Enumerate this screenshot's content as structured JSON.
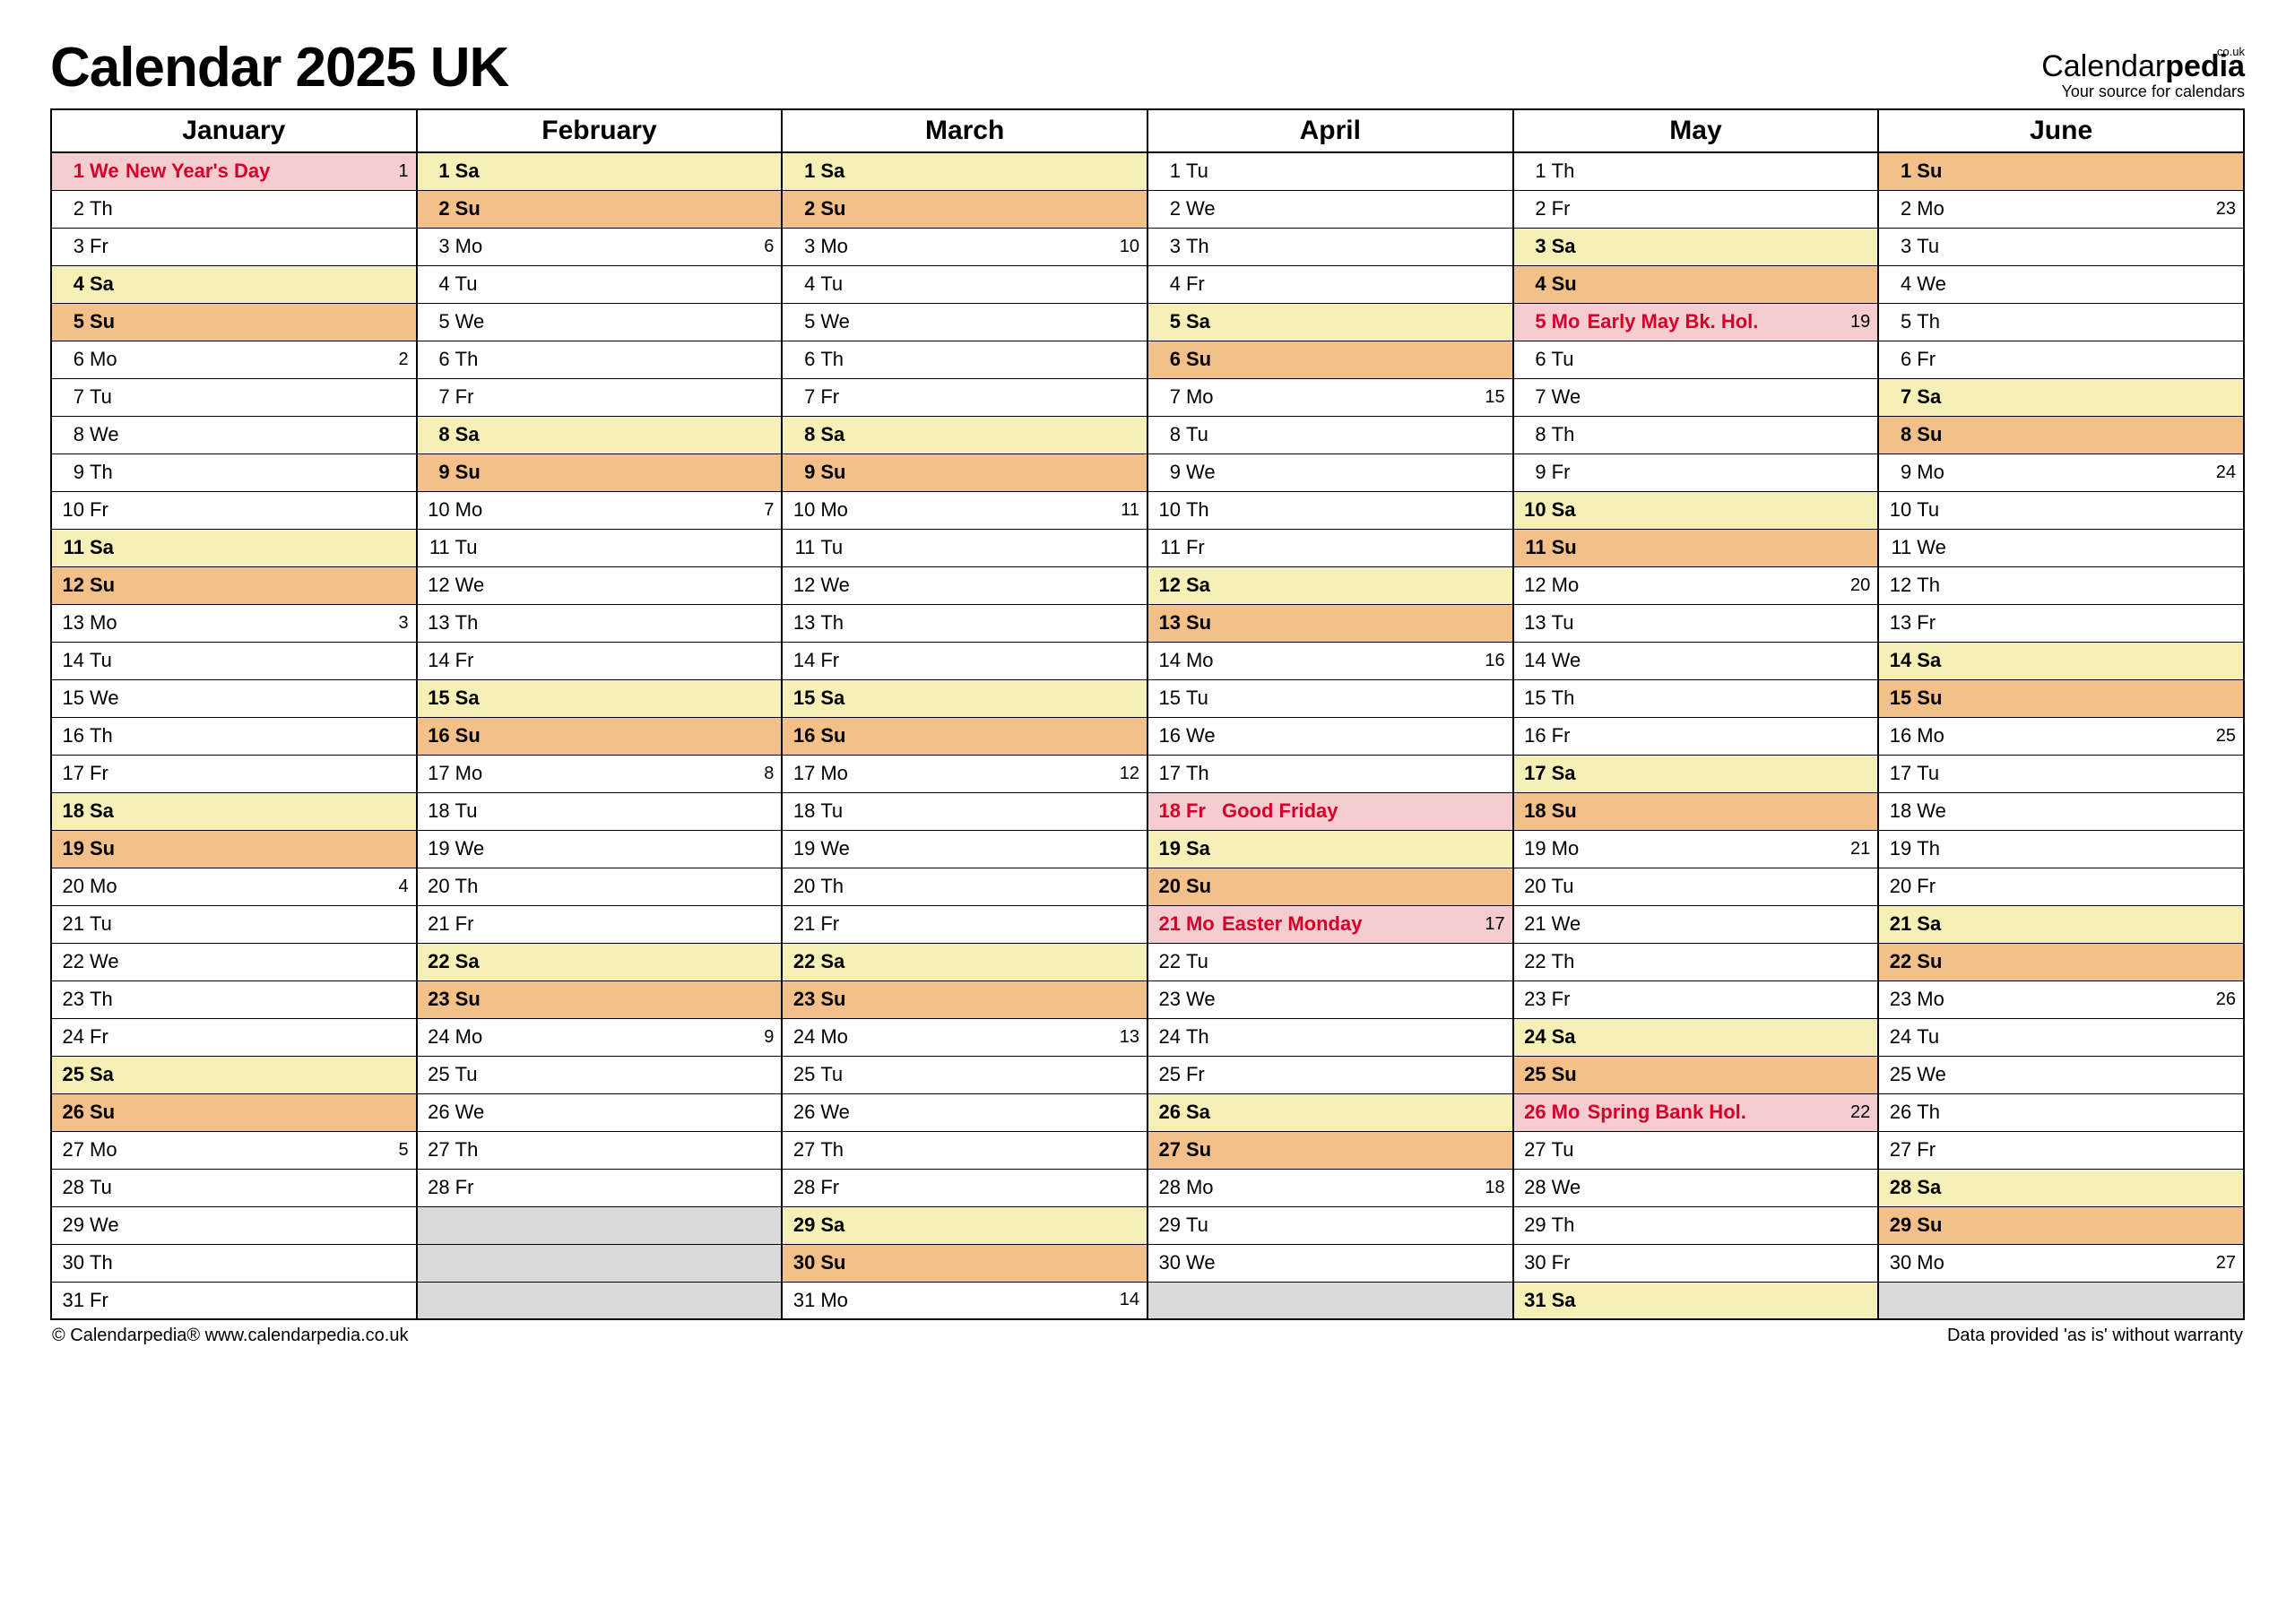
{
  "title": "Calendar 2025 UK",
  "logo": {
    "brand_a": "Calendar",
    "brand_b": "pedia",
    "tld": ".co.uk",
    "tagline": "Your source for calendars"
  },
  "footer_left": "© Calendarpedia®    www.calendarpedia.co.uk",
  "footer_right": "Data provided 'as is' without warranty",
  "colors": {
    "sat": "#f6f0b6",
    "sun": "#f2c088",
    "hol": "#f5cdd0",
    "empty": "#d9d9d9",
    "hol_text": "#d4002a",
    "bold_text": "#000000"
  },
  "row_count": 31,
  "months": [
    {
      "name": "January",
      "days": [
        {
          "n": 1,
          "d": "We",
          "hol": "New Year's Day",
          "wk": 1,
          "t": "hol"
        },
        {
          "n": 2,
          "d": "Th"
        },
        {
          "n": 3,
          "d": "Fr"
        },
        {
          "n": 4,
          "d": "Sa",
          "t": "sat"
        },
        {
          "n": 5,
          "d": "Su",
          "t": "sun"
        },
        {
          "n": 6,
          "d": "Mo",
          "wk": 2
        },
        {
          "n": 7,
          "d": "Tu"
        },
        {
          "n": 8,
          "d": "We"
        },
        {
          "n": 9,
          "d": "Th"
        },
        {
          "n": 10,
          "d": "Fr"
        },
        {
          "n": 11,
          "d": "Sa",
          "t": "sat"
        },
        {
          "n": 12,
          "d": "Su",
          "t": "sun"
        },
        {
          "n": 13,
          "d": "Mo",
          "wk": 3
        },
        {
          "n": 14,
          "d": "Tu"
        },
        {
          "n": 15,
          "d": "We"
        },
        {
          "n": 16,
          "d": "Th"
        },
        {
          "n": 17,
          "d": "Fr"
        },
        {
          "n": 18,
          "d": "Sa",
          "t": "sat"
        },
        {
          "n": 19,
          "d": "Su",
          "t": "sun"
        },
        {
          "n": 20,
          "d": "Mo",
          "wk": 4
        },
        {
          "n": 21,
          "d": "Tu"
        },
        {
          "n": 22,
          "d": "We"
        },
        {
          "n": 23,
          "d": "Th"
        },
        {
          "n": 24,
          "d": "Fr"
        },
        {
          "n": 25,
          "d": "Sa",
          "t": "sat"
        },
        {
          "n": 26,
          "d": "Su",
          "t": "sun"
        },
        {
          "n": 27,
          "d": "Mo",
          "wk": 5
        },
        {
          "n": 28,
          "d": "Tu"
        },
        {
          "n": 29,
          "d": "We"
        },
        {
          "n": 30,
          "d": "Th"
        },
        {
          "n": 31,
          "d": "Fr"
        }
      ]
    },
    {
      "name": "February",
      "days": [
        {
          "n": 1,
          "d": "Sa",
          "t": "sat"
        },
        {
          "n": 2,
          "d": "Su",
          "t": "sun"
        },
        {
          "n": 3,
          "d": "Mo",
          "wk": 6
        },
        {
          "n": 4,
          "d": "Tu"
        },
        {
          "n": 5,
          "d": "We"
        },
        {
          "n": 6,
          "d": "Th"
        },
        {
          "n": 7,
          "d": "Fr"
        },
        {
          "n": 8,
          "d": "Sa",
          "t": "sat"
        },
        {
          "n": 9,
          "d": "Su",
          "t": "sun"
        },
        {
          "n": 10,
          "d": "Mo",
          "wk": 7
        },
        {
          "n": 11,
          "d": "Tu"
        },
        {
          "n": 12,
          "d": "We"
        },
        {
          "n": 13,
          "d": "Th"
        },
        {
          "n": 14,
          "d": "Fr"
        },
        {
          "n": 15,
          "d": "Sa",
          "t": "sat"
        },
        {
          "n": 16,
          "d": "Su",
          "t": "sun"
        },
        {
          "n": 17,
          "d": "Mo",
          "wk": 8
        },
        {
          "n": 18,
          "d": "Tu"
        },
        {
          "n": 19,
          "d": "We"
        },
        {
          "n": 20,
          "d": "Th"
        },
        {
          "n": 21,
          "d": "Fr"
        },
        {
          "n": 22,
          "d": "Sa",
          "t": "sat"
        },
        {
          "n": 23,
          "d": "Su",
          "t": "sun"
        },
        {
          "n": 24,
          "d": "Mo",
          "wk": 9
        },
        {
          "n": 25,
          "d": "Tu"
        },
        {
          "n": 26,
          "d": "We"
        },
        {
          "n": 27,
          "d": "Th"
        },
        {
          "n": 28,
          "d": "Fr"
        }
      ]
    },
    {
      "name": "March",
      "days": [
        {
          "n": 1,
          "d": "Sa",
          "t": "sat"
        },
        {
          "n": 2,
          "d": "Su",
          "t": "sun"
        },
        {
          "n": 3,
          "d": "Mo",
          "wk": 10
        },
        {
          "n": 4,
          "d": "Tu"
        },
        {
          "n": 5,
          "d": "We"
        },
        {
          "n": 6,
          "d": "Th"
        },
        {
          "n": 7,
          "d": "Fr"
        },
        {
          "n": 8,
          "d": "Sa",
          "t": "sat"
        },
        {
          "n": 9,
          "d": "Su",
          "t": "sun"
        },
        {
          "n": 10,
          "d": "Mo",
          "wk": 11
        },
        {
          "n": 11,
          "d": "Tu"
        },
        {
          "n": 12,
          "d": "We"
        },
        {
          "n": 13,
          "d": "Th"
        },
        {
          "n": 14,
          "d": "Fr"
        },
        {
          "n": 15,
          "d": "Sa",
          "t": "sat"
        },
        {
          "n": 16,
          "d": "Su",
          "t": "sun"
        },
        {
          "n": 17,
          "d": "Mo",
          "wk": 12
        },
        {
          "n": 18,
          "d": "Tu"
        },
        {
          "n": 19,
          "d": "We"
        },
        {
          "n": 20,
          "d": "Th"
        },
        {
          "n": 21,
          "d": "Fr"
        },
        {
          "n": 22,
          "d": "Sa",
          "t": "sat"
        },
        {
          "n": 23,
          "d": "Su",
          "t": "sun"
        },
        {
          "n": 24,
          "d": "Mo",
          "wk": 13
        },
        {
          "n": 25,
          "d": "Tu"
        },
        {
          "n": 26,
          "d": "We"
        },
        {
          "n": 27,
          "d": "Th"
        },
        {
          "n": 28,
          "d": "Fr"
        },
        {
          "n": 29,
          "d": "Sa",
          "t": "sat"
        },
        {
          "n": 30,
          "d": "Su",
          "t": "sun"
        },
        {
          "n": 31,
          "d": "Mo",
          "wk": 14
        }
      ]
    },
    {
      "name": "April",
      "days": [
        {
          "n": 1,
          "d": "Tu"
        },
        {
          "n": 2,
          "d": "We"
        },
        {
          "n": 3,
          "d": "Th"
        },
        {
          "n": 4,
          "d": "Fr"
        },
        {
          "n": 5,
          "d": "Sa",
          "t": "sat"
        },
        {
          "n": 6,
          "d": "Su",
          "t": "sun"
        },
        {
          "n": 7,
          "d": "Mo",
          "wk": 15
        },
        {
          "n": 8,
          "d": "Tu"
        },
        {
          "n": 9,
          "d": "We"
        },
        {
          "n": 10,
          "d": "Th"
        },
        {
          "n": 11,
          "d": "Fr"
        },
        {
          "n": 12,
          "d": "Sa",
          "t": "sat"
        },
        {
          "n": 13,
          "d": "Su",
          "t": "sun"
        },
        {
          "n": 14,
          "d": "Mo",
          "wk": 16
        },
        {
          "n": 15,
          "d": "Tu"
        },
        {
          "n": 16,
          "d": "We"
        },
        {
          "n": 17,
          "d": "Th"
        },
        {
          "n": 18,
          "d": "Fr",
          "hol": "Good Friday",
          "t": "hol"
        },
        {
          "n": 19,
          "d": "Sa",
          "t": "sat"
        },
        {
          "n": 20,
          "d": "Su",
          "t": "sun"
        },
        {
          "n": 21,
          "d": "Mo",
          "hol": "Easter Monday",
          "wk": 17,
          "t": "hol"
        },
        {
          "n": 22,
          "d": "Tu"
        },
        {
          "n": 23,
          "d": "We"
        },
        {
          "n": 24,
          "d": "Th"
        },
        {
          "n": 25,
          "d": "Fr"
        },
        {
          "n": 26,
          "d": "Sa",
          "t": "sat"
        },
        {
          "n": 27,
          "d": "Su",
          "t": "sun"
        },
        {
          "n": 28,
          "d": "Mo",
          "wk": 18
        },
        {
          "n": 29,
          "d": "Tu"
        },
        {
          "n": 30,
          "d": "We"
        }
      ]
    },
    {
      "name": "May",
      "days": [
        {
          "n": 1,
          "d": "Th"
        },
        {
          "n": 2,
          "d": "Fr"
        },
        {
          "n": 3,
          "d": "Sa",
          "t": "sat"
        },
        {
          "n": 4,
          "d": "Su",
          "t": "sun"
        },
        {
          "n": 5,
          "d": "Mo",
          "hol": "Early May Bk. Hol.",
          "wk": 19,
          "t": "hol"
        },
        {
          "n": 6,
          "d": "Tu"
        },
        {
          "n": 7,
          "d": "We"
        },
        {
          "n": 8,
          "d": "Th"
        },
        {
          "n": 9,
          "d": "Fr"
        },
        {
          "n": 10,
          "d": "Sa",
          "t": "sat"
        },
        {
          "n": 11,
          "d": "Su",
          "t": "sun"
        },
        {
          "n": 12,
          "d": "Mo",
          "wk": 20
        },
        {
          "n": 13,
          "d": "Tu"
        },
        {
          "n": 14,
          "d": "We"
        },
        {
          "n": 15,
          "d": "Th"
        },
        {
          "n": 16,
          "d": "Fr"
        },
        {
          "n": 17,
          "d": "Sa",
          "t": "sat"
        },
        {
          "n": 18,
          "d": "Su",
          "t": "sun"
        },
        {
          "n": 19,
          "d": "Mo",
          "wk": 21
        },
        {
          "n": 20,
          "d": "Tu"
        },
        {
          "n": 21,
          "d": "We"
        },
        {
          "n": 22,
          "d": "Th"
        },
        {
          "n": 23,
          "d": "Fr"
        },
        {
          "n": 24,
          "d": "Sa",
          "t": "sat"
        },
        {
          "n": 25,
          "d": "Su",
          "t": "sun"
        },
        {
          "n": 26,
          "d": "Mo",
          "hol": "Spring Bank Hol.",
          "wk": 22,
          "t": "hol"
        },
        {
          "n": 27,
          "d": "Tu"
        },
        {
          "n": 28,
          "d": "We"
        },
        {
          "n": 29,
          "d": "Th"
        },
        {
          "n": 30,
          "d": "Fr"
        },
        {
          "n": 31,
          "d": "Sa",
          "t": "sat"
        }
      ]
    },
    {
      "name": "June",
      "days": [
        {
          "n": 1,
          "d": "Su",
          "t": "sun"
        },
        {
          "n": 2,
          "d": "Mo",
          "wk": 23
        },
        {
          "n": 3,
          "d": "Tu"
        },
        {
          "n": 4,
          "d": "We"
        },
        {
          "n": 5,
          "d": "Th"
        },
        {
          "n": 6,
          "d": "Fr"
        },
        {
          "n": 7,
          "d": "Sa",
          "t": "sat"
        },
        {
          "n": 8,
          "d": "Su",
          "t": "sun"
        },
        {
          "n": 9,
          "d": "Mo",
          "wk": 24
        },
        {
          "n": 10,
          "d": "Tu"
        },
        {
          "n": 11,
          "d": "We"
        },
        {
          "n": 12,
          "d": "Th"
        },
        {
          "n": 13,
          "d": "Fr"
        },
        {
          "n": 14,
          "d": "Sa",
          "t": "sat"
        },
        {
          "n": 15,
          "d": "Su",
          "t": "sun"
        },
        {
          "n": 16,
          "d": "Mo",
          "wk": 25
        },
        {
          "n": 17,
          "d": "Tu"
        },
        {
          "n": 18,
          "d": "We"
        },
        {
          "n": 19,
          "d": "Th"
        },
        {
          "n": 20,
          "d": "Fr"
        },
        {
          "n": 21,
          "d": "Sa",
          "t": "sat"
        },
        {
          "n": 22,
          "d": "Su",
          "t": "sun"
        },
        {
          "n": 23,
          "d": "Mo",
          "wk": 26
        },
        {
          "n": 24,
          "d": "Tu"
        },
        {
          "n": 25,
          "d": "We"
        },
        {
          "n": 26,
          "d": "Th"
        },
        {
          "n": 27,
          "d": "Fr"
        },
        {
          "n": 28,
          "d": "Sa",
          "t": "sat"
        },
        {
          "n": 29,
          "d": "Su",
          "t": "sun"
        },
        {
          "n": 30,
          "d": "Mo",
          "wk": 27
        }
      ]
    }
  ]
}
